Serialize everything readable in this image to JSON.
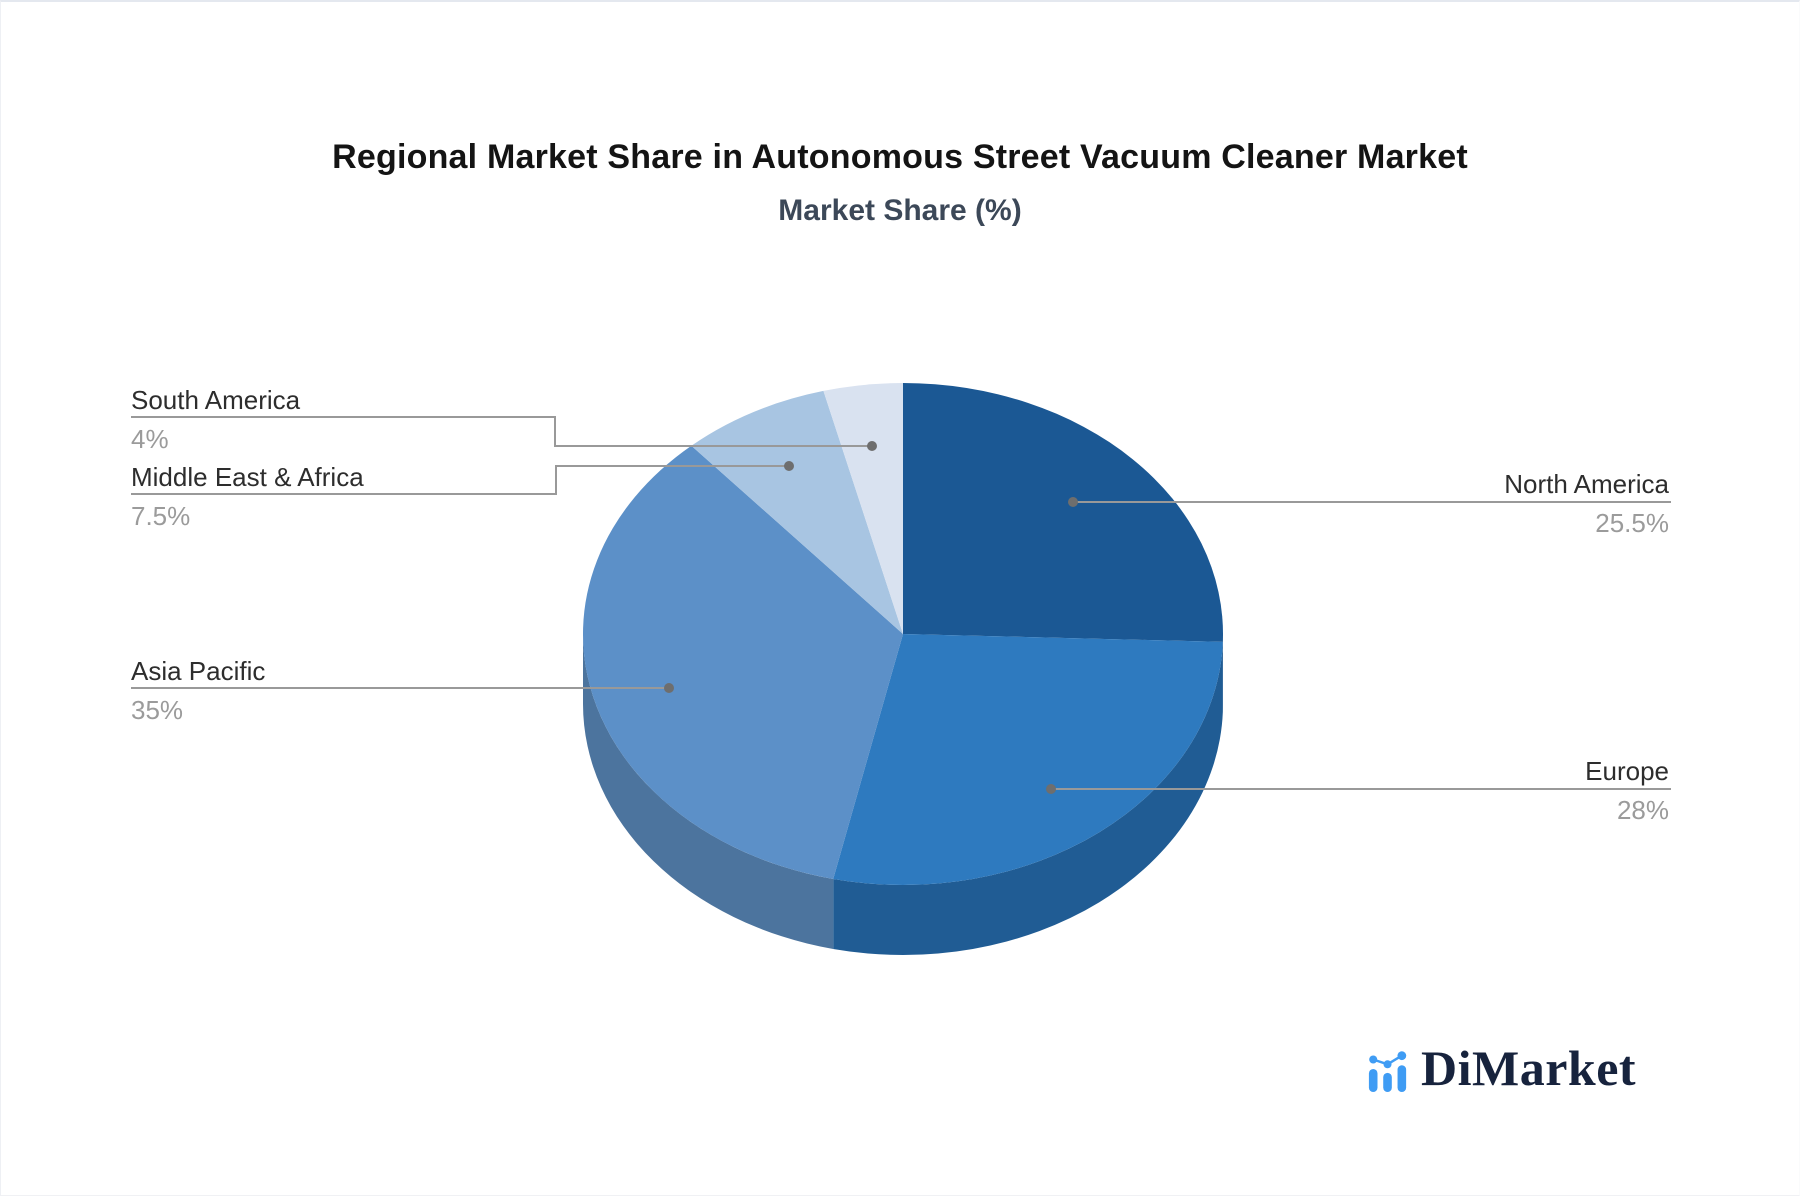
{
  "title": "Regional Market Share in Autonomous Street Vacuum Cleaner Market",
  "subtitle": "Market Share (%)",
  "brand": {
    "name": "DiMarket",
    "icon": "bar-line-chart-logo",
    "text_color": "#17233d",
    "icon_color": "#3f9cf4"
  },
  "colors": {
    "background": "#ffffff",
    "connector_line": "#999999",
    "connector_dot": "#6e6e6e",
    "label_text": "#2d2d2d",
    "percent_text": "#9b9b9b",
    "title_text": "#141414",
    "subtitle_text": "#3c4858"
  },
  "chart_data": {
    "type": "pie",
    "style": "3d",
    "title": "Regional Market Share in Autonomous Street Vacuum Cleaner Market",
    "subtitle": "Market Share (%)",
    "unit": "%",
    "start_angle_deg": -90,
    "direction": "clockwise",
    "legend_position": "callout-labels",
    "slices": [
      {
        "label": "North America",
        "value": 25.5,
        "pct_label": "25.5%",
        "color": "#1b5894",
        "side_color": "#154571",
        "label_side": "right"
      },
      {
        "label": "Europe",
        "value": 28,
        "pct_label": "28%",
        "color": "#2e7abf",
        "side_color": "#205c94",
        "label_side": "right"
      },
      {
        "label": "Asia Pacific",
        "value": 35,
        "pct_label": "35%",
        "color": "#5c90c8",
        "side_color": "#4c749e",
        "label_side": "left"
      },
      {
        "label": "Middle East & Africa",
        "value": 7.5,
        "pct_label": "7.5%",
        "color": "#a8c5e2",
        "side_color": "#88a8c4",
        "label_side": "left"
      },
      {
        "label": "South America",
        "value": 4,
        "pct_label": "4%",
        "color": "#d9e2f0",
        "side_color": "#b5c3d4",
        "label_side": "left"
      }
    ]
  }
}
